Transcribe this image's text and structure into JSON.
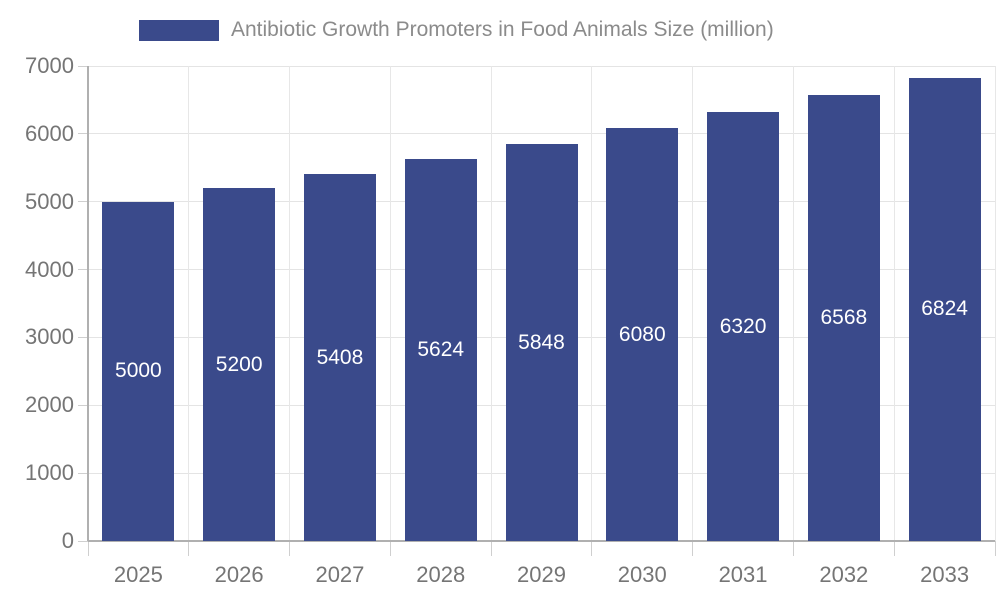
{
  "legend": {
    "label": "Antibiotic Growth Promoters in Food Animals Size (million)"
  },
  "chart_data": {
    "type": "bar",
    "title": "Antibiotic Growth Promoters in Food Animals Size (million)",
    "series_name": "Antibiotic Growth Promoters in Food Animals Size (million)",
    "categories": [
      "2025",
      "2026",
      "2027",
      "2028",
      "2029",
      "2030",
      "2031",
      "2032",
      "2033"
    ],
    "values": [
      5000,
      5200,
      5408,
      5624,
      5848,
      6080,
      6320,
      6568,
      6824
    ],
    "value_labels": [
      "5000",
      "5200",
      "5408",
      "5624",
      "5848",
      "6080",
      "6320",
      "6568",
      "6824"
    ],
    "xlabel": "",
    "ylabel": "",
    "ylim": [
      0,
      7000
    ],
    "ytick_step": 1000,
    "ytick_labels": [
      "0",
      "1000",
      "2000",
      "3000",
      "4000",
      "5000",
      "6000",
      "7000"
    ],
    "grid": true,
    "legend_position": "top",
    "bar_color": "#3A4A8B",
    "value_label_color": "#ffffff",
    "axis_label_color": "#757575"
  }
}
